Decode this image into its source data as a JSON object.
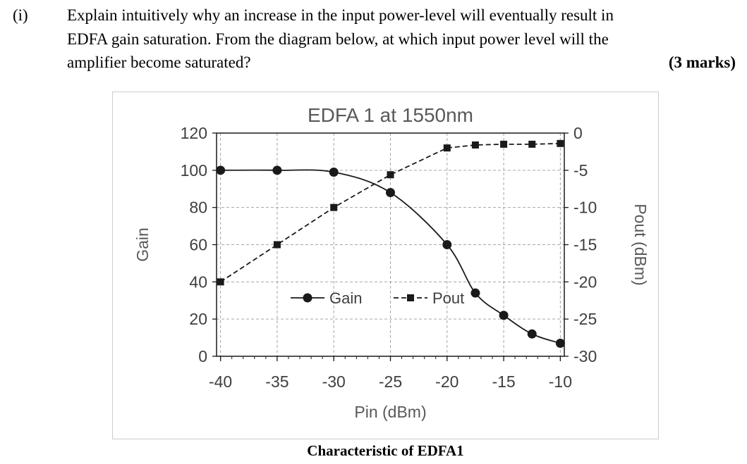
{
  "question": {
    "index_label": "(i)",
    "line1": "Explain intuitively why an increase in the input power-level will eventually result in",
    "line2": "EDFA gain saturation. From the diagram below, at which input power level will the",
    "line3": "amplifier become saturated?",
    "marks": "(3 marks)"
  },
  "figure": {
    "caption": "Characteristic of EDFA1"
  },
  "chart_data": {
    "type": "line",
    "title": "EDFA 1 at 1550nm",
    "xlabel": "Pin (dBm)",
    "ylabel_left": "Gain",
    "ylabel_right": "Pout (dBm)",
    "x": [
      -40,
      -35,
      -30,
      -25,
      -20,
      -17.5,
      -15,
      -12.5,
      -10
    ],
    "series": [
      {
        "name": "Gain",
        "axis": "left",
        "marker": "circle",
        "line": "solid",
        "values": [
          100,
          100,
          99,
          88,
          60,
          34,
          22,
          12,
          7
        ]
      },
      {
        "name": "Pout",
        "axis": "right",
        "marker": "square",
        "line": "dashed",
        "values": [
          -20,
          -15,
          -10,
          -5.6,
          -2,
          -1.6,
          -1.5,
          -1.5,
          -1.4
        ]
      }
    ],
    "x_ticks": [
      -40,
      -35,
      -30,
      -25,
      -20,
      -15,
      -10
    ],
    "left_ticks": [
      0,
      20,
      40,
      60,
      80,
      100,
      120
    ],
    "right_ticks": [
      0,
      -5,
      -10,
      -15,
      -20,
      -25,
      -30
    ],
    "xlim": [
      -40,
      -10
    ],
    "ylim_left": [
      0,
      120
    ],
    "ylim_right": [
      -30,
      0
    ],
    "minor_tick_step": 1,
    "grid": true,
    "legend_position": "inside-plot",
    "colors": {
      "line": "#1a1a1a",
      "grid": "#a6a6a6",
      "title": "#595959",
      "tick": "#3f3f3f",
      "figure_border": "#cccccc"
    }
  }
}
